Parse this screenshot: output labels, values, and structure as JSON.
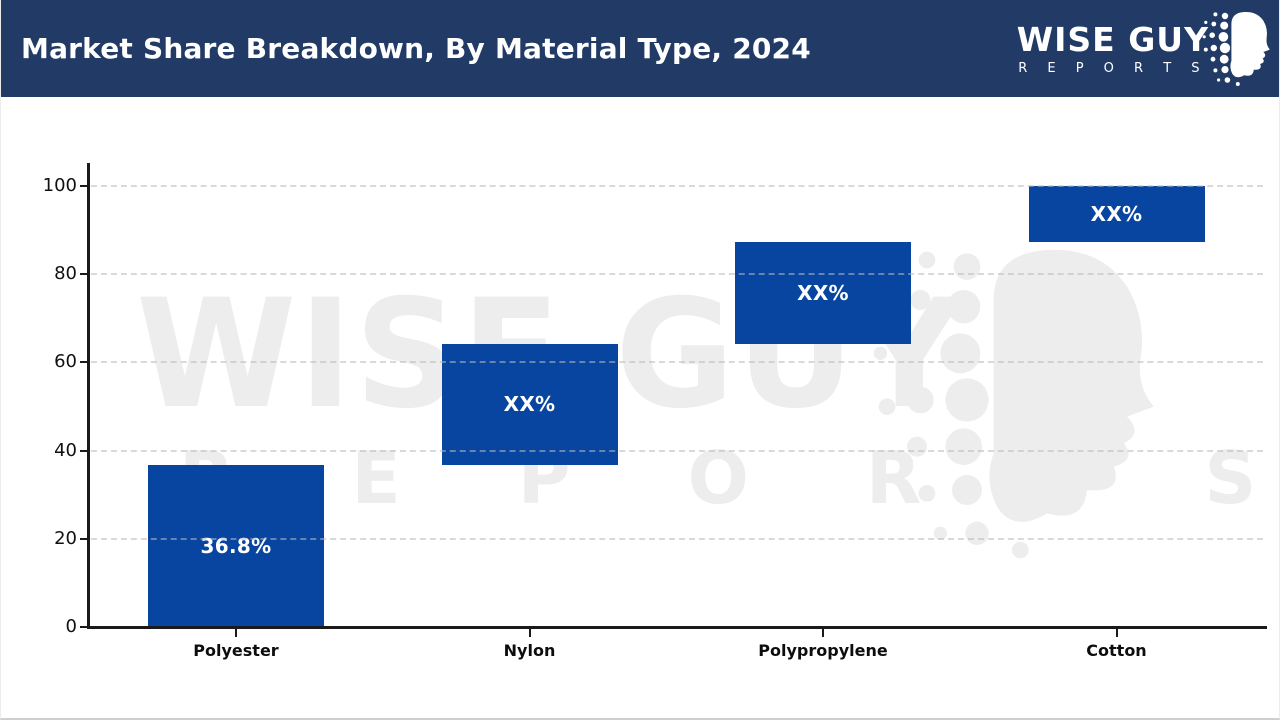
{
  "header": {
    "title": "Market Share Breakdown, By Material Type, 2024",
    "logo": {
      "line1": "WISE GUY",
      "line2": "R E P O R T S"
    }
  },
  "watermark": {
    "line1": "WISE GUY",
    "line2": "R E P O R T S"
  },
  "colors": {
    "header_bg": "#213a66",
    "bar": "#0845a0",
    "title_text": "#ffffff",
    "bar_label_text": "#ffffff",
    "axis": "#1a1a1a",
    "gridline": "#d9d9d9",
    "watermark": "#ededed"
  },
  "chart_data": {
    "type": "bar",
    "subtype": "waterfall-stacked-percent",
    "title": "Market Share Breakdown, By Material Type, 2024",
    "categories": [
      "Polyester",
      "Nylon",
      "Polypropylene",
      "Cotton"
    ],
    "segments": [
      {
        "category": "Polyester",
        "start": 0,
        "end": 36.8,
        "label": "36.8%"
      },
      {
        "category": "Nylon",
        "start": 36.8,
        "end": 64.2,
        "label": "XX%"
      },
      {
        "category": "Polypropylene",
        "start": 64.2,
        "end": 87.3,
        "label": "XX%"
      },
      {
        "category": "Cotton",
        "start": 87.3,
        "end": 100,
        "label": "XX%"
      }
    ],
    "yticks": [
      0,
      20,
      40,
      60,
      80,
      100
    ],
    "ylim": [
      0,
      100
    ],
    "xlabel": "",
    "ylabel": "",
    "grid": "dashed-horizontal",
    "legend": "none"
  }
}
